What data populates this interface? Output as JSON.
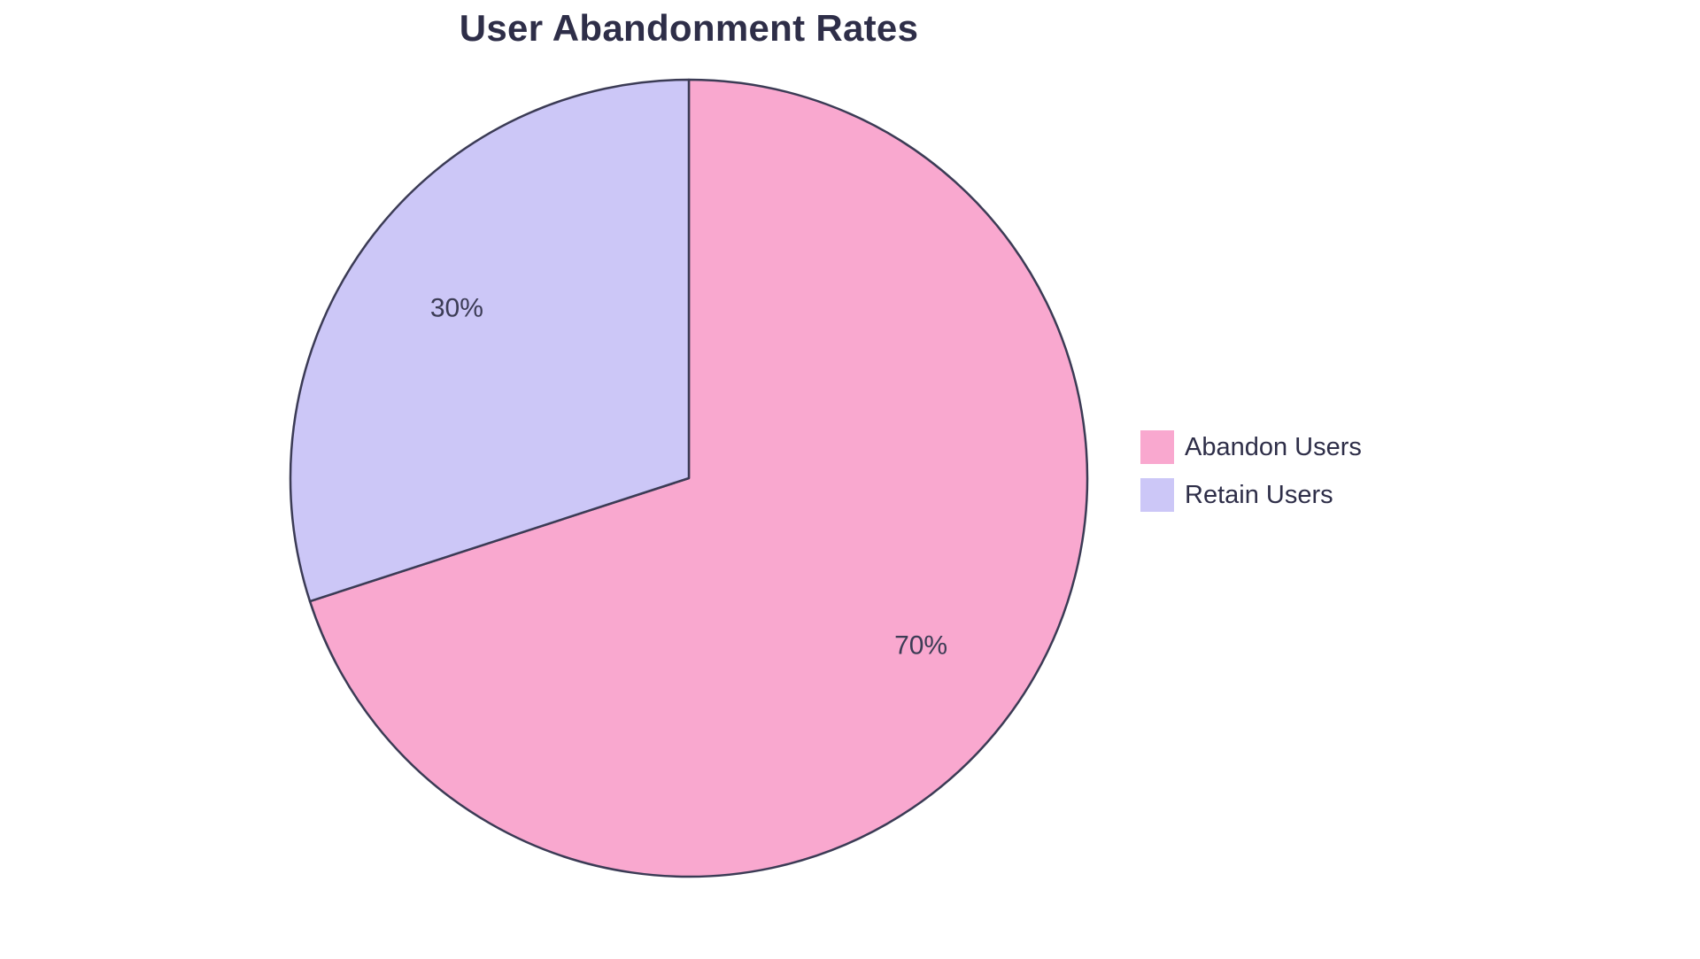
{
  "chart_data": {
    "type": "pie",
    "title": "User Abandonment Rates",
    "slices": [
      {
        "label": "Abandon Users",
        "value": 70,
        "display": "70%",
        "color": "#F9A8CF"
      },
      {
        "label": "Retain Users",
        "value": 30,
        "display": "30%",
        "color": "#CCC7F7"
      }
    ],
    "start_angle": "top",
    "direction": "clockwise",
    "legend_position": "right",
    "grid": "off",
    "stroke_color": "#3B3B55",
    "label_color": "#3C3C55",
    "title_color": "#2E2E48",
    "background_color": "#FFFFFF"
  }
}
